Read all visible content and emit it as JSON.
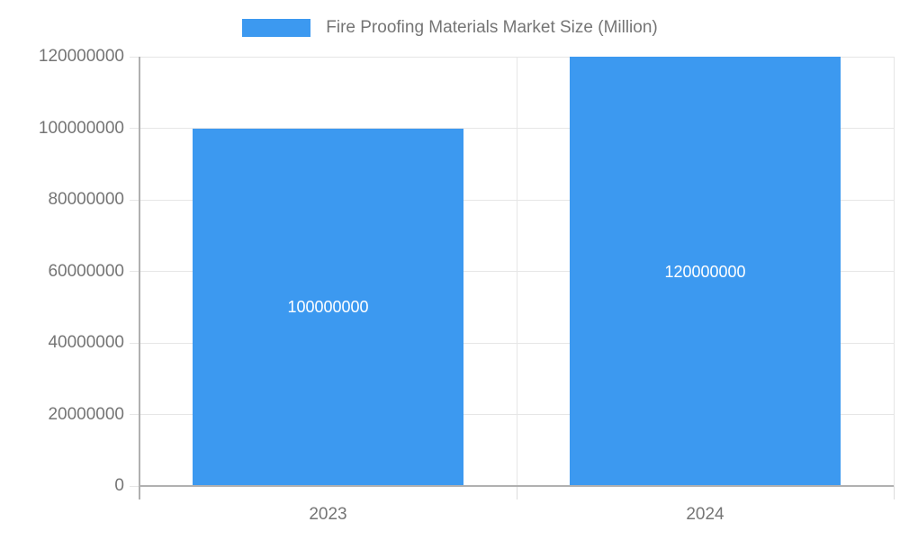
{
  "legend": {
    "label": "Fire Proofing Materials Market Size (Million)"
  },
  "colors": {
    "bar": "#3c99f0",
    "grid": "#e6e6e6",
    "axis": "#b0b0b0",
    "tick": "#dcdcdc",
    "text": "#757575",
    "bar_label": "#ffffff",
    "background": "#ffffff"
  },
  "chart_data": {
    "type": "bar",
    "title": "Fire Proofing Materials Market Size (Million)",
    "categories": [
      "2023",
      "2024"
    ],
    "values": [
      100000000,
      120000000
    ],
    "bar_labels": [
      "100000000",
      "120000000"
    ],
    "xlabel": "",
    "ylabel": "",
    "ylim": [
      0,
      120000000
    ],
    "y_ticks": [
      0,
      20000000,
      40000000,
      60000000,
      80000000,
      100000000,
      120000000
    ],
    "y_tick_labels": [
      "0",
      "20000000",
      "40000000",
      "60000000",
      "80000000",
      "100000000",
      "120000000"
    ],
    "grid": true,
    "legend_position": "top",
    "bar_width_fraction": 0.72
  }
}
